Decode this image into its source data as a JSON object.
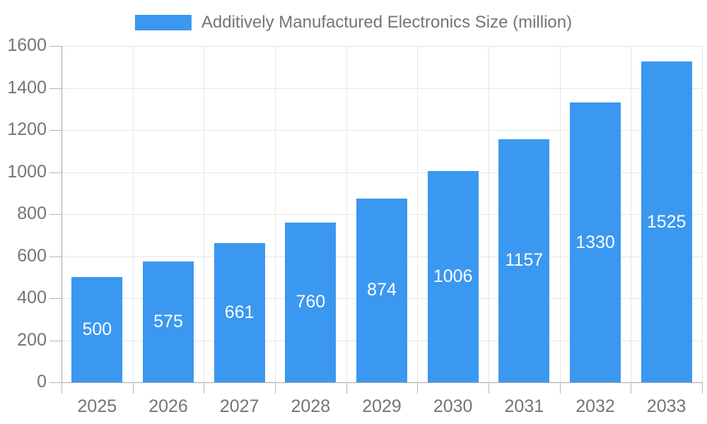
{
  "legend": {
    "label": "Additively Manufactured Electronics Size (million)",
    "swatch_color": "#3b98f0"
  },
  "chart_data": {
    "type": "bar",
    "title": "Additively Manufactured Electronics Size (million)",
    "categories": [
      "2025",
      "2026",
      "2027",
      "2028",
      "2029",
      "2030",
      "2031",
      "2032",
      "2033"
    ],
    "values": [
      500,
      575,
      661,
      760,
      874,
      1006,
      1157,
      1330,
      1525
    ],
    "xlabel": "",
    "ylabel": "",
    "ylim": [
      0,
      1600
    ],
    "ytick_interval": 200,
    "ytick_labels": [
      "0",
      "200",
      "400",
      "600",
      "800",
      "1000",
      "1200",
      "1400",
      "1600"
    ],
    "grid": true,
    "legend_position": "top",
    "bar_color": "#3b98f0",
    "value_label_color": "#ffffff",
    "axis_text_color": "#757575",
    "gridline_color": "#e6e6e6",
    "axis_line_color": "#a8a8a8",
    "tick_color": "#b5b5b5"
  }
}
